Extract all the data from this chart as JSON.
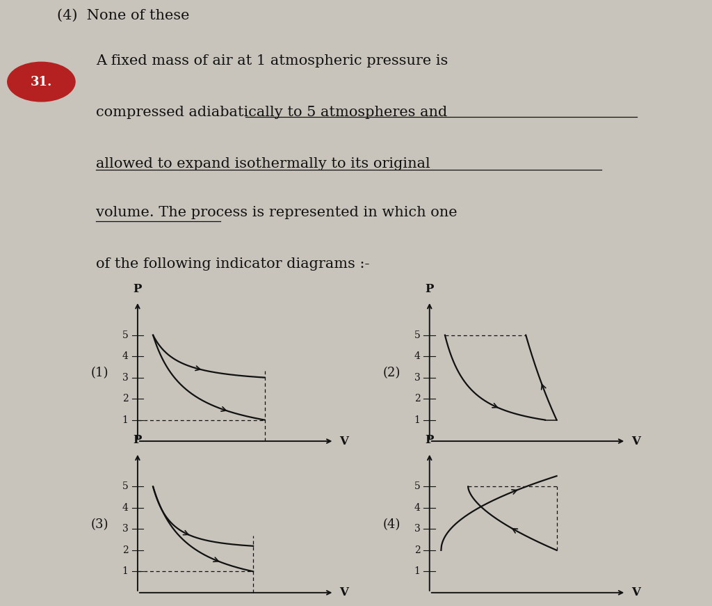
{
  "bg_color": "#c8c4bc",
  "text_color": "#111111",
  "option4": "(4)  None of these",
  "q_num": "31.",
  "q_lines": [
    "A fixed mass of air at 1 atmospheric pressure is",
    "compressed adiabatically to 5 atmospheres and",
    "allowed to expand isothermally to its original",
    "volume. The process is represented in which one",
    "of the following indicator diagrams :-"
  ],
  "circle_color": "#b52020",
  "p_axis": "P",
  "v_axis": "V",
  "p_ticks": [
    1,
    2,
    3,
    4,
    5
  ],
  "diag_labels": [
    "(1)",
    "(2)",
    "(3)",
    "(4)"
  ],
  "lw_curve": 1.6,
  "lw_axis": 1.4,
  "lw_dashed": 0.9,
  "text_fontsize": 15,
  "tick_fontsize": 10,
  "axis_label_fontsize": 12
}
